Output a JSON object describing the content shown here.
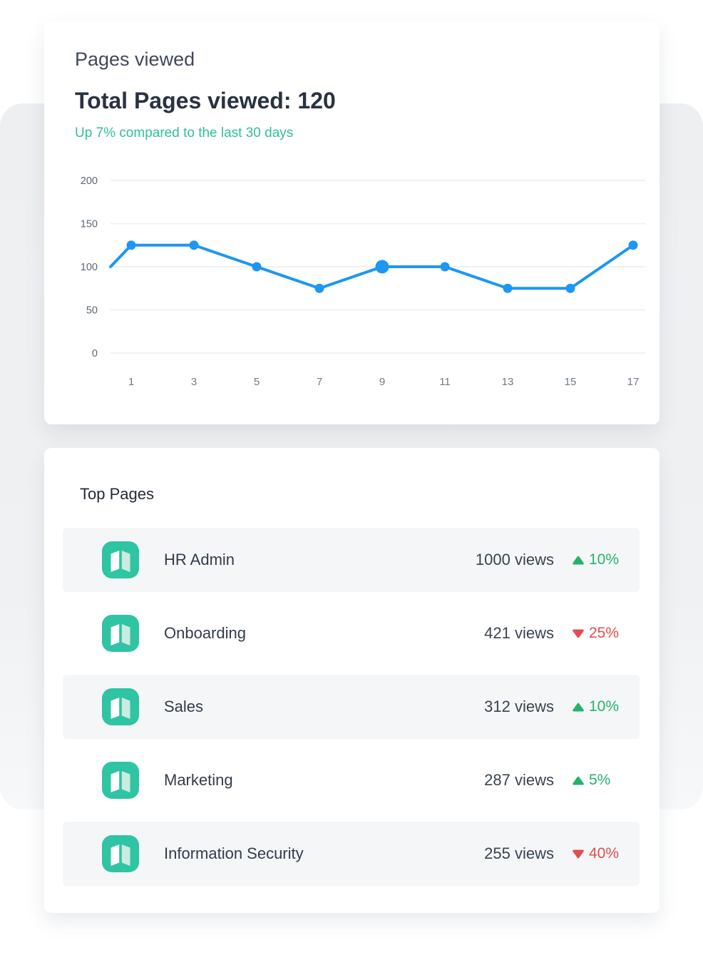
{
  "pages_viewed_card": {
    "title": "Pages viewed",
    "total": "Total Pages viewed: 120",
    "subtitle": "Up 7% compared to the last 30 days",
    "subtitle_color": "#30bf9c"
  },
  "chart_data": {
    "type": "line",
    "title": "Pages viewed",
    "x": [
      0,
      1,
      3,
      5,
      7,
      9,
      11,
      13,
      15,
      17
    ],
    "values": [
      100,
      125,
      125,
      100,
      75,
      100,
      100,
      75,
      75,
      125
    ],
    "x_ticks": [
      1,
      3,
      5,
      7,
      9,
      11,
      13,
      15,
      17
    ],
    "y_ticks": [
      0,
      50,
      100,
      150,
      200
    ],
    "ylim": [
      0,
      200
    ],
    "xlabel": "",
    "ylabel": "",
    "grid": true,
    "legend": false,
    "line_color": "#1e96f3",
    "highlight_x": 9
  },
  "top_pages_card": {
    "title": "Top Pages",
    "rows": [
      {
        "name": "HR Admin",
        "views": "1000 views",
        "change": "10%",
        "direction": "up"
      },
      {
        "name": "Onboarding",
        "views": "421 views",
        "change": "25%",
        "direction": "down"
      },
      {
        "name": "Sales",
        "views": "312 views",
        "change": "10%",
        "direction": "up"
      },
      {
        "name": "Marketing",
        "views": "287 views",
        "change": "5%",
        "direction": "up"
      },
      {
        "name": "Information Security",
        "views": "255 views",
        "change": "40%",
        "direction": "down"
      }
    ],
    "colors": {
      "up": "#27b26c",
      "down": "#e34d4d",
      "icon_bg": "#2fc4a3"
    }
  }
}
